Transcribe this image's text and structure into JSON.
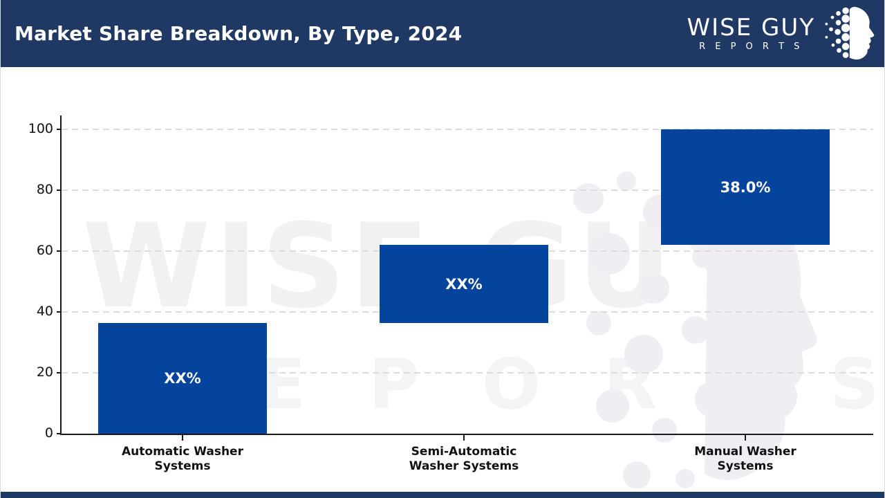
{
  "header": {
    "title": "Market Share Breakdown, By Type, 2024",
    "bg_color": "#1f3864",
    "text_color": "#ffffff",
    "logo": {
      "brand": "WISE GUY",
      "sub": "R E P O R T S"
    }
  },
  "watermark": {
    "line1": "WISE GUY",
    "line2": "R E P O R T S"
  },
  "chart_data": {
    "type": "bar",
    "subtype": "waterfall-floating-bars",
    "title": "Market Share Breakdown, By Type, 2024",
    "categories": [
      [
        "Automatic Washer",
        "Systems"
      ],
      [
        "Semi-Automatic",
        "Washer Systems"
      ],
      [
        "Manual Washer",
        "Systems"
      ]
    ],
    "segments": [
      {
        "start": 0,
        "end": 36.4,
        "label": "XX%"
      },
      {
        "start": 36.4,
        "end": 62.0,
        "label": "XX%"
      },
      {
        "start": 62.0,
        "end": 100.0,
        "label": "38.0%"
      }
    ],
    "ylim": [
      0,
      100
    ],
    "yticks": [
      0,
      20,
      40,
      60,
      80,
      100
    ],
    "grid": "horizontal dashed",
    "legend": "none",
    "bar_color": "#05449c",
    "bar_label_color": "#ffffff",
    "axis_color": "#1a1a1a",
    "grid_color": "#dcdcdc"
  },
  "footer": {
    "bg_color": "#1f3864"
  }
}
